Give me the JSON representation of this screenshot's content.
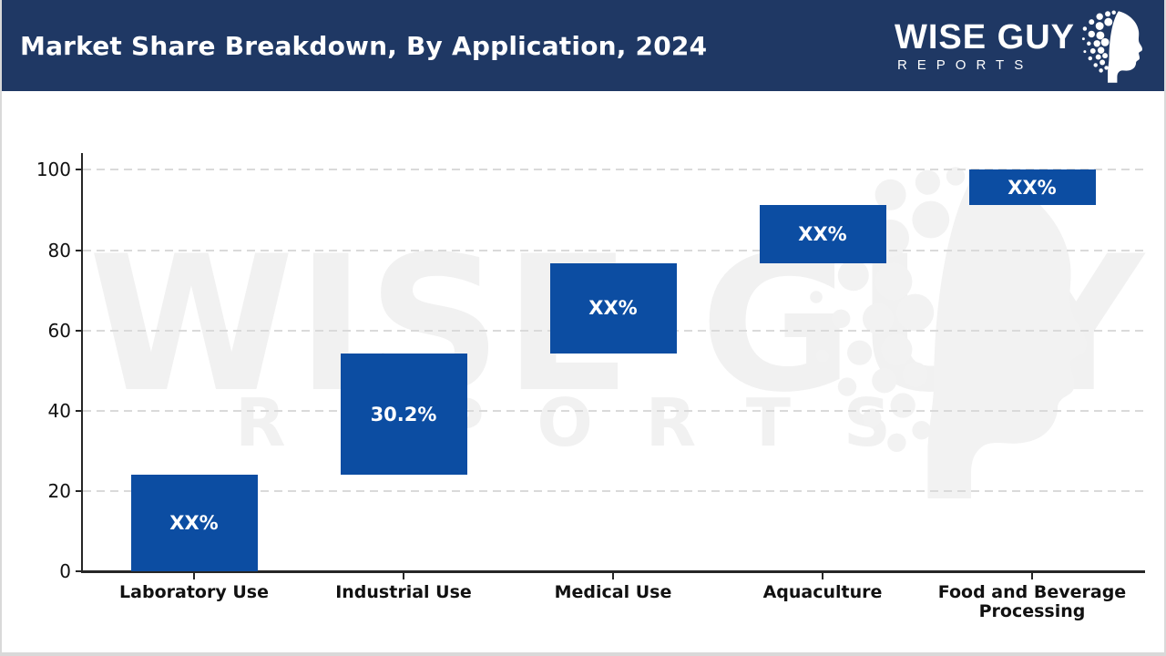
{
  "header": {
    "title": "Market Share Breakdown, By Application, 2024",
    "bg_color": "#1F3864",
    "logo": {
      "line1": "WISE GUY",
      "line2": "REPORTS"
    }
  },
  "watermark": {
    "line1": "WISE GUY",
    "line2": "REPORTS"
  },
  "chart_data": {
    "type": "bar",
    "subtype": "waterfall",
    "title": "Market Share Breakdown, By Application, 2024",
    "categories": [
      "Laboratory Use",
      "Industrial Use",
      "Medical Use",
      "Aquaculture",
      "Food and Beverage Processing"
    ],
    "segments": [
      {
        "category": "Laboratory Use",
        "start": 0,
        "end": 24,
        "label": "XX%"
      },
      {
        "category": "Industrial Use",
        "start": 24,
        "end": 54.2,
        "label": "30.2%"
      },
      {
        "category": "Medical Use",
        "start": 54.2,
        "end": 76.8,
        "label": "XX%"
      },
      {
        "category": "Aquaculture",
        "start": 76.8,
        "end": 91.3,
        "label": "XX%"
      },
      {
        "category": "Food and Beverage Processing",
        "start": 91.3,
        "end": 100,
        "label": "XX%"
      }
    ],
    "y_ticks": [
      0,
      20,
      40,
      60,
      80,
      100
    ],
    "ylim": [
      0,
      100
    ],
    "bar_color": "#0C4DA2",
    "grid": "horizontal-dashed",
    "legend": "none"
  }
}
